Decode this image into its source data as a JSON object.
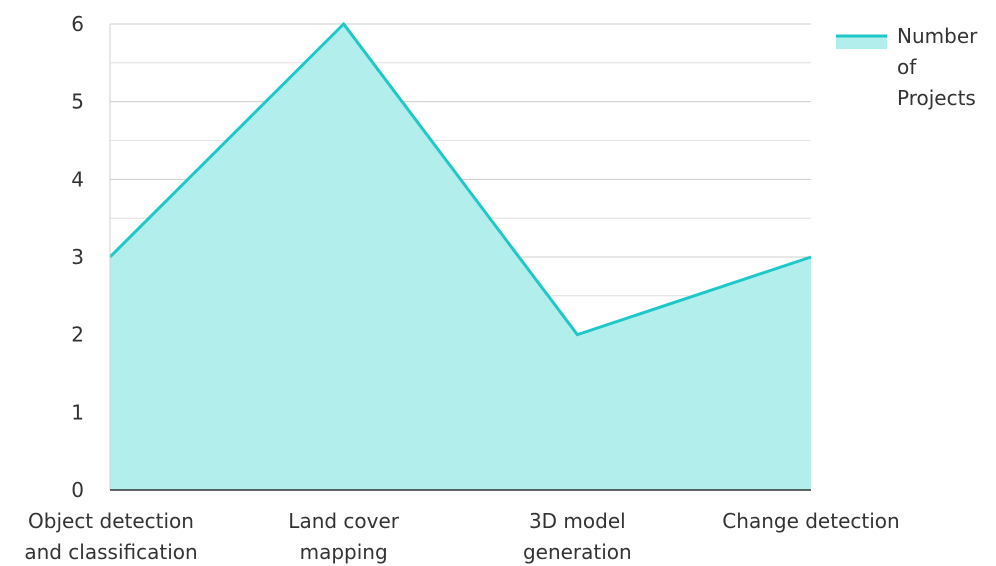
{
  "chart_data": {
    "type": "area",
    "title": "",
    "xlabel": "",
    "ylabel": "",
    "categories": [
      [
        "Object detection",
        "and classification"
      ],
      [
        "Land cover",
        "mapping"
      ],
      [
        "3D model",
        "generation"
      ],
      [
        "Change detection"
      ]
    ],
    "series": [
      {
        "name": "Number of Projects",
        "values": [
          3,
          6,
          2,
          3
        ],
        "line_color": "#1ec8c8",
        "fill_color": "#b2eeec"
      }
    ],
    "ylim": [
      0,
      6
    ],
    "y_ticks": [
      "0",
      "1",
      "2",
      "3",
      "4",
      "5",
      "6"
    ],
    "grid": true,
    "grid_color": "#cccccc",
    "legend": {
      "position": "top-right",
      "lines": [
        "Number",
        "of",
        "Projects"
      ]
    }
  }
}
